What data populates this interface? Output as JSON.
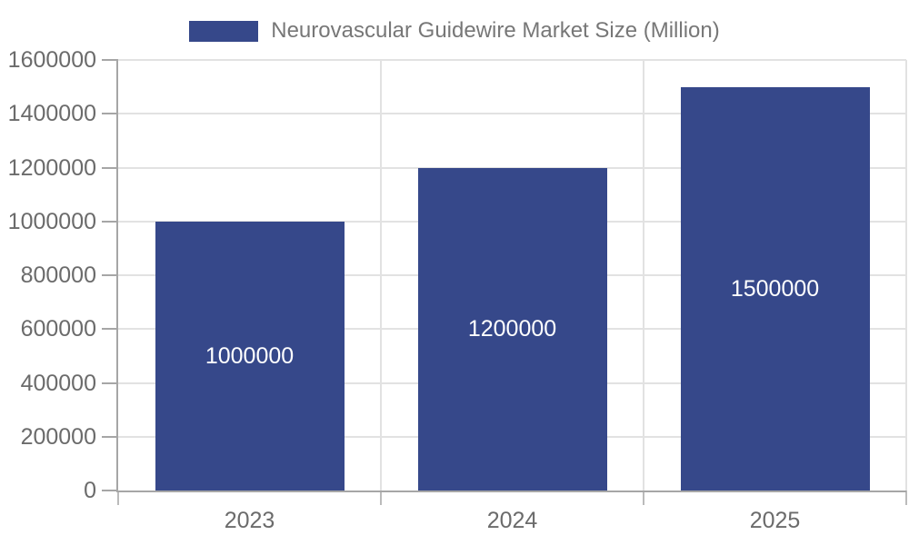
{
  "title": "Neurovascular Guidewire Market Size (Million)",
  "legend": {
    "label": "Neurovascular Guidewire Market Size (Million)"
  },
  "colors": {
    "bar": "#36488A",
    "grid": "#E2E2E2",
    "axis": "#A6A6A6",
    "tick": "#BBBBBB",
    "axis_label_text": "#6B6B6B",
    "legend_text": "#777777",
    "value_label_text": "#FFFFFF",
    "background": "#FFFFFF"
  },
  "chart_data": {
    "type": "bar",
    "title": "Neurovascular Guidewire Market Size (Million)",
    "categories": [
      "2023",
      "2024",
      "2025"
    ],
    "values": [
      1000000,
      1200000,
      1500000
    ],
    "bar_value_labels": [
      "1000000",
      "1200000",
      "1500000"
    ],
    "ylim": [
      0,
      1600000
    ],
    "yticks": [
      0,
      200000,
      400000,
      600000,
      800000,
      1000000,
      1200000,
      1400000,
      1600000
    ],
    "ytick_labels": [
      "0",
      "200000",
      "400000",
      "600000",
      "800000",
      "1000000",
      "1200000",
      "1400000",
      "1600000"
    ],
    "xlabel": "",
    "ylabel": "",
    "grid": true,
    "legend_position": "top-center"
  }
}
